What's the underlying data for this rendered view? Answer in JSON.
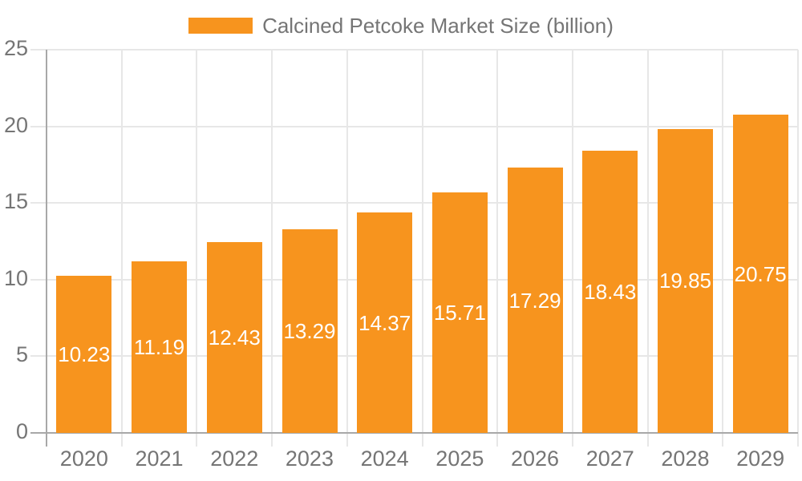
{
  "chart_data": {
    "type": "bar",
    "title": "",
    "legend": "Calcined Petcoke Market Size (billion)",
    "legend_position": "top-center",
    "categories": [
      "2020",
      "2021",
      "2022",
      "2023",
      "2024",
      "2025",
      "2026",
      "2027",
      "2028",
      "2029"
    ],
    "series": [
      {
        "name": "Calcined Petcoke Market Size (billion)",
        "values": [
          10.23,
          11.19,
          12.43,
          13.29,
          14.37,
          15.71,
          17.29,
          18.43,
          19.85,
          20.75
        ],
        "value_labels": [
          "10.23",
          "11.19",
          "12.43",
          "13.29",
          "14.37",
          "15.71",
          "17.29",
          "18.43",
          "19.85",
          "20.75"
        ]
      }
    ],
    "xlabel": "",
    "ylabel": "",
    "ylim": [
      0,
      25
    ],
    "yticks": [
      0,
      5,
      10,
      15,
      20,
      25
    ],
    "ytick_labels": [
      "0",
      "5",
      "10",
      "15",
      "20",
      "25"
    ],
    "grid": true,
    "data_labels_position": "inside-center",
    "colors": {
      "bar": "#F7941E",
      "bar_label_text": "#FFFFFF",
      "gridline": "#E7E7E7",
      "axis_line": "#A8A8A8",
      "axis_text": "#757575",
      "legend_text": "#757575",
      "background": "#FFFFFF"
    }
  }
}
